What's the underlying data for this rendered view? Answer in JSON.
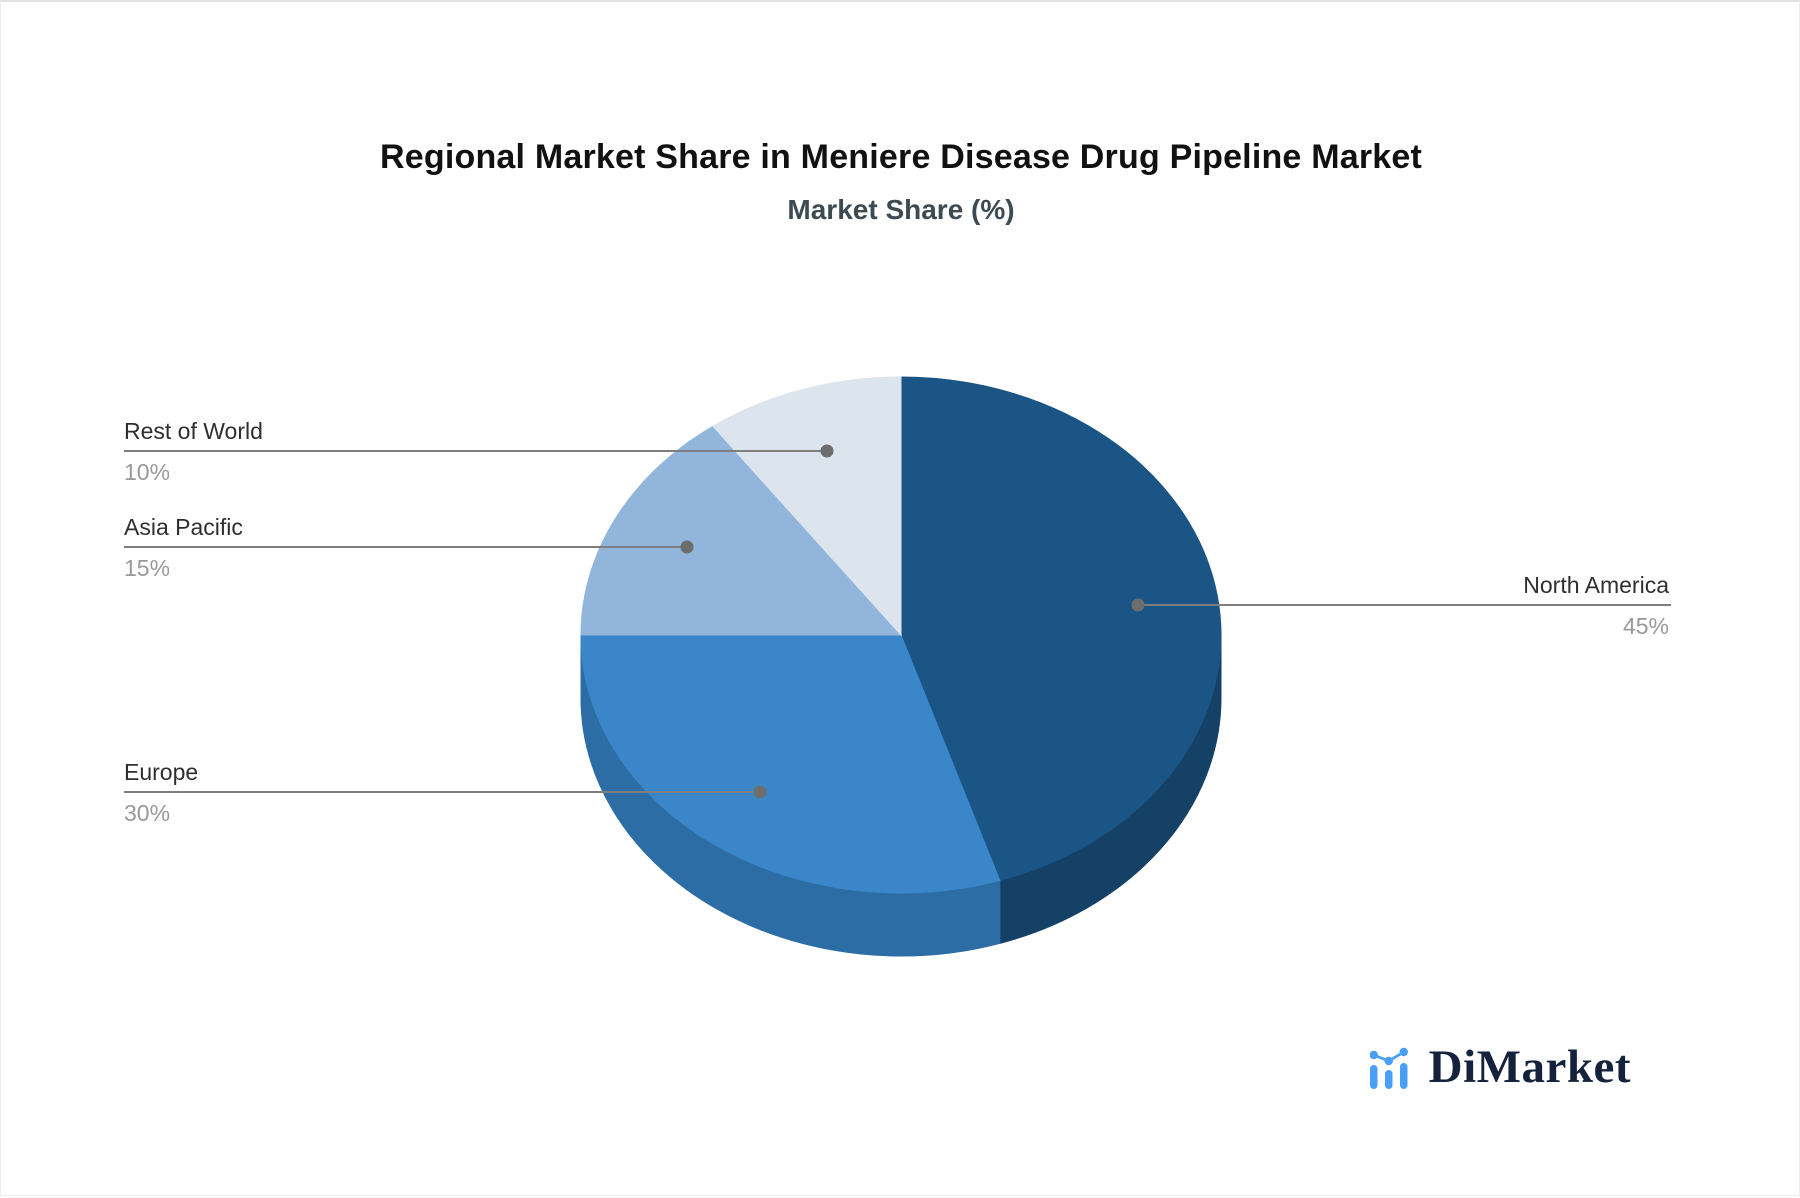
{
  "chart_data": {
    "type": "pie",
    "title": "Regional Market Share in Meniere Disease Drug Pipeline Market",
    "subtitle": "Market Share (%)",
    "unit": "%",
    "start_angle_deg": 0,
    "direction": "clockwise",
    "effect": "3d-depth",
    "slices": [
      {
        "label": "North America",
        "value": 45,
        "pct_label": "45%",
        "color": "#1A5586",
        "side_color": "#164167",
        "label_side": "right"
      },
      {
        "label": "Europe",
        "value": 30,
        "pct_label": "30%",
        "color": "#3B86C9",
        "side_color": "#2D6DA5",
        "label_side": "left"
      },
      {
        "label": "Asia Pacific",
        "value": 15,
        "pct_label": "15%",
        "color": "#92B5DB",
        "label_side": "left"
      },
      {
        "label": "Rest of World",
        "value": 10,
        "pct_label": "10%",
        "color": "#DCE4EE",
        "label_side": "left"
      }
    ],
    "colors": {
      "title_text": "#111111",
      "subtitle_text": "#3D4A52",
      "label_text": "#2F2F2F",
      "pct_text": "#999999",
      "leader_line": "#7E7E7E",
      "leader_dot": "#6D6D6D"
    }
  },
  "logo": {
    "text": "DiMarket",
    "icon": "bar-chart-logo-icon",
    "text_color": "#15223C",
    "icon_color": "#499FF5"
  }
}
